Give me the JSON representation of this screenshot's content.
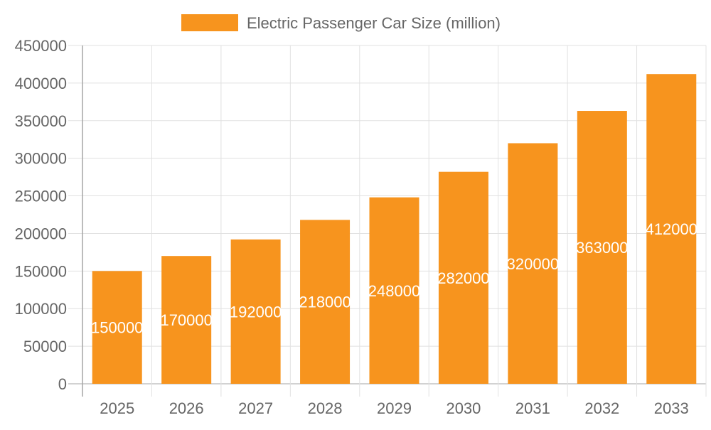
{
  "chart_data": {
    "type": "bar",
    "categories": [
      "2025",
      "2026",
      "2027",
      "2028",
      "2029",
      "2030",
      "2031",
      "2032",
      "2033"
    ],
    "series": [
      {
        "name": "Electric Passenger Car Size (million)",
        "values": [
          150000,
          170000,
          192000,
          218000,
          248000,
          282000,
          320000,
          363000,
          412000
        ]
      }
    ],
    "ylim": [
      0,
      450000
    ],
    "ytick_step": 50000,
    "yticks": [
      "0",
      "50000",
      "100000",
      "150000",
      "200000",
      "250000",
      "300000",
      "350000",
      "400000",
      "450000"
    ],
    "grid": true,
    "legend": "top",
    "data_labels": true,
    "colors": {
      "bar": "#f7941e",
      "grid": "#e1e1e1",
      "axis": "#a6a6a6",
      "text": "#666666",
      "label": "#ffffff"
    }
  }
}
